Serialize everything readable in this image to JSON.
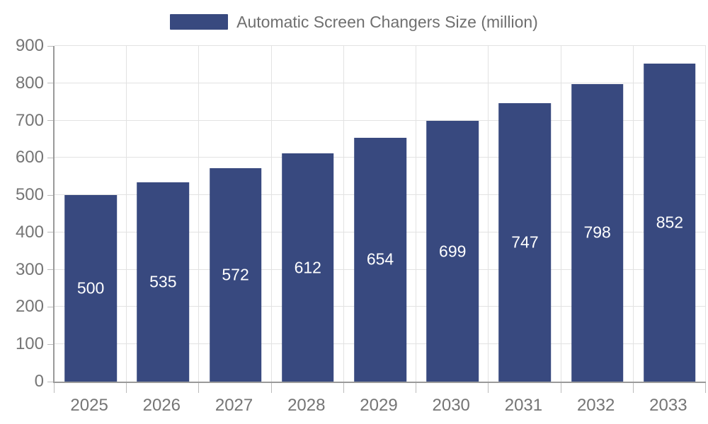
{
  "legend": {
    "label": "Automatic Screen Changers Size (million)"
  },
  "chart_data": {
    "type": "bar",
    "title": "",
    "categories": [
      "2025",
      "2026",
      "2027",
      "2028",
      "2029",
      "2030",
      "2031",
      "2032",
      "2033"
    ],
    "series": [
      {
        "name": "Automatic Screen Changers Size (million)",
        "values": [
          500,
          535,
          572,
          612,
          654,
          699,
          747,
          798,
          852
        ]
      }
    ],
    "bar_labels_shown": true,
    "xlabel": "",
    "ylabel": "",
    "ylim": [
      0,
      900
    ],
    "yticks": [
      0,
      100,
      200,
      300,
      400,
      500,
      600,
      700,
      800,
      900
    ],
    "grid": true,
    "legend_position": "top-center"
  },
  "colors": {
    "bar": "#38497F",
    "grid": "#E2E2E2",
    "axis": "#9A9A9A",
    "tick": "#BBBBBB",
    "tick_label": "#757575",
    "legend_text": "#6F6F6F",
    "bar_label": "#FFFFFF",
    "background": "#FFFFFF"
  }
}
